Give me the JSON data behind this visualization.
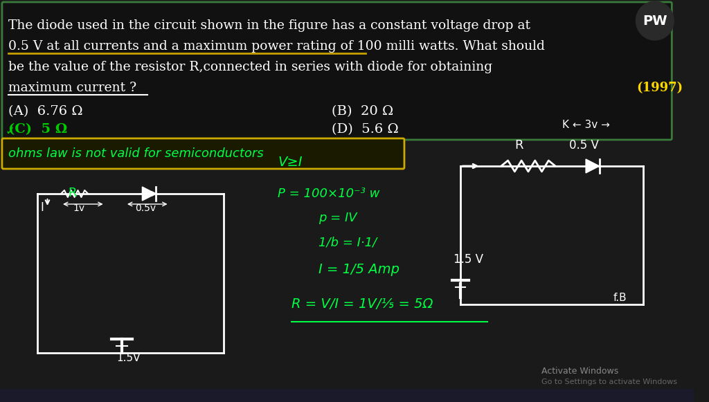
{
  "bg_color": "#1a1a1a",
  "question_box_border": "#3a7a3a",
  "question_text_color": "#ffffff",
  "yellow_underline_color": "#c8a000",
  "year_color": "#ffd700",
  "answer_highlight_color": "#00cc00",
  "green_text_color": "#00ff44",
  "yellow_box_border": "#ccaa00",
  "white_text": "#ffffff",
  "gray_text": "#cccccc",
  "question_line1": "The diode used in the circuit shown in the figure has a constant voltage drop at",
  "question_line2": "0.5 V at all currents and a maximum power rating of 100 milli watts. What should",
  "question_line3": "be the value of the resistor R,connected in series with diode for obtaining",
  "question_line4": "maximum current ?",
  "year": "(1997)",
  "optA": "(A)  6.76 Ω",
  "optB": "(B)  20 Ω",
  "optC": "(C)  5 Ω",
  "optD": "(D)  5.6 Ω",
  "note_text": "ohms law is not valid for semiconductors",
  "handwritten_line1": "P = 100×10⁻³ w",
  "handwritten_line2": "p = IV",
  "handwritten_line3": "I = 1/5 Amp",
  "handwritten_line4": "R = V/I = 1V/⅕ = 5Ω"
}
